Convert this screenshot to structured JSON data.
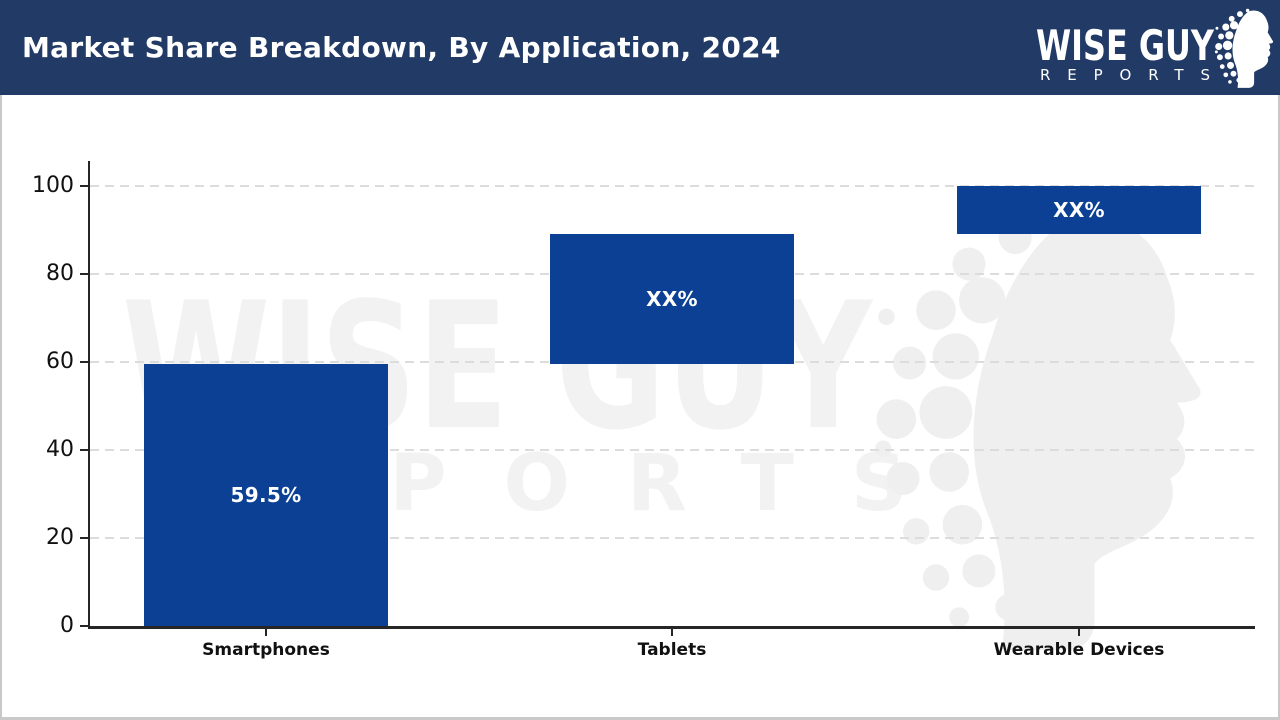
{
  "header": {
    "title": "Market Share Breakdown, By Application, 2024",
    "logo": {
      "line1": "WISE GUY",
      "line2": "REPORTS",
      "icon": "face-profile-dots-icon"
    }
  },
  "watermark": {
    "line1": "WISE GUY",
    "line2": "REPORTS"
  },
  "colors": {
    "header_bg": "#213a66",
    "watermark_text": "#f2f2f2",
    "watermark_face": "#efefef",
    "axis": "#262626",
    "gridline": "#dcdcdc"
  },
  "chart_data": {
    "type": "bar",
    "subtype": "waterfall",
    "title": "Market Share Breakdown, By Application, 2024",
    "categories": [
      "Smartphones",
      "Tablets",
      "Wearable Devices"
    ],
    "segments": [
      {
        "category": "Smartphones",
        "start": 0,
        "end": 59.5,
        "value_label": "59.5%"
      },
      {
        "category": "Tablets",
        "start": 59.5,
        "end": 89,
        "value_label": "XX%"
      },
      {
        "category": "Wearable Devices",
        "start": 89,
        "end": 100,
        "value_label": "XX%"
      }
    ],
    "ylim": [
      0,
      100
    ],
    "yticks": [
      0,
      20,
      40,
      60,
      80,
      100
    ],
    "xlabel": "",
    "ylabel": "",
    "grid": "horizontal-dashed",
    "legend": "none",
    "bar_color": "#0b4095",
    "value_label_color": "#ffffff"
  }
}
